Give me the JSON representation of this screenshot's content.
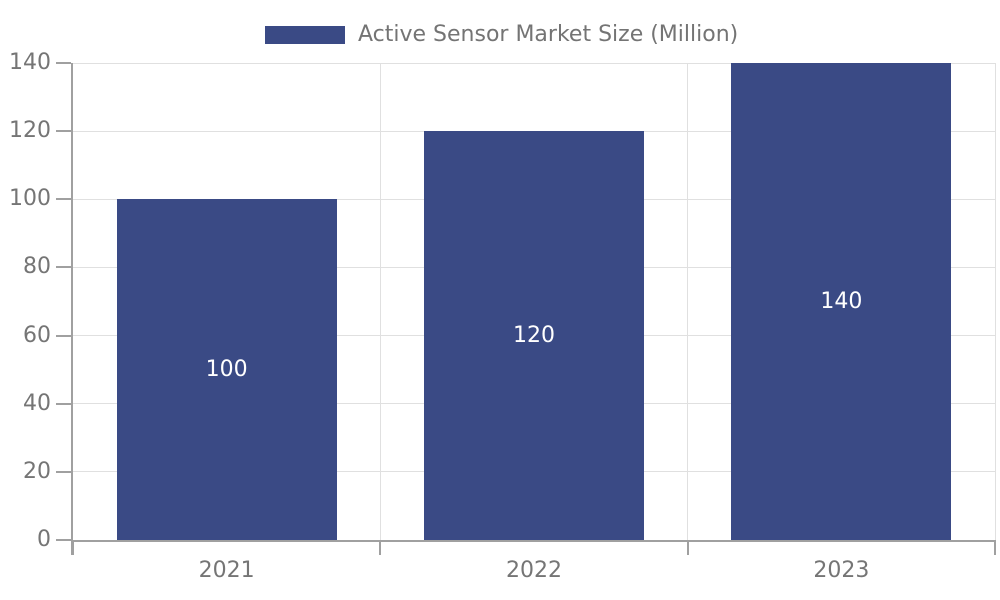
{
  "chart_data": {
    "type": "bar",
    "categories": [
      "2021",
      "2022",
      "2023"
    ],
    "series": [
      {
        "name": "Active Sensor Market Size (Million)",
        "values": [
          100,
          120,
          140
        ]
      }
    ],
    "title": "",
    "xlabel": "",
    "ylabel": "",
    "ylim": [
      0,
      140
    ],
    "yticks": [
      0,
      20,
      40,
      60,
      80,
      100,
      120,
      140
    ],
    "grid": true,
    "legend_position": "top",
    "value_labels_position": "inside-center",
    "colors": {
      "bar": "#3A4A85",
      "axis": "#A0A0A0",
      "grid": "#E0E0E0",
      "tick_label": "#757575",
      "value_label": "#FFFFFF",
      "legend_text": "#747474",
      "background": "#FFFFFF"
    }
  }
}
